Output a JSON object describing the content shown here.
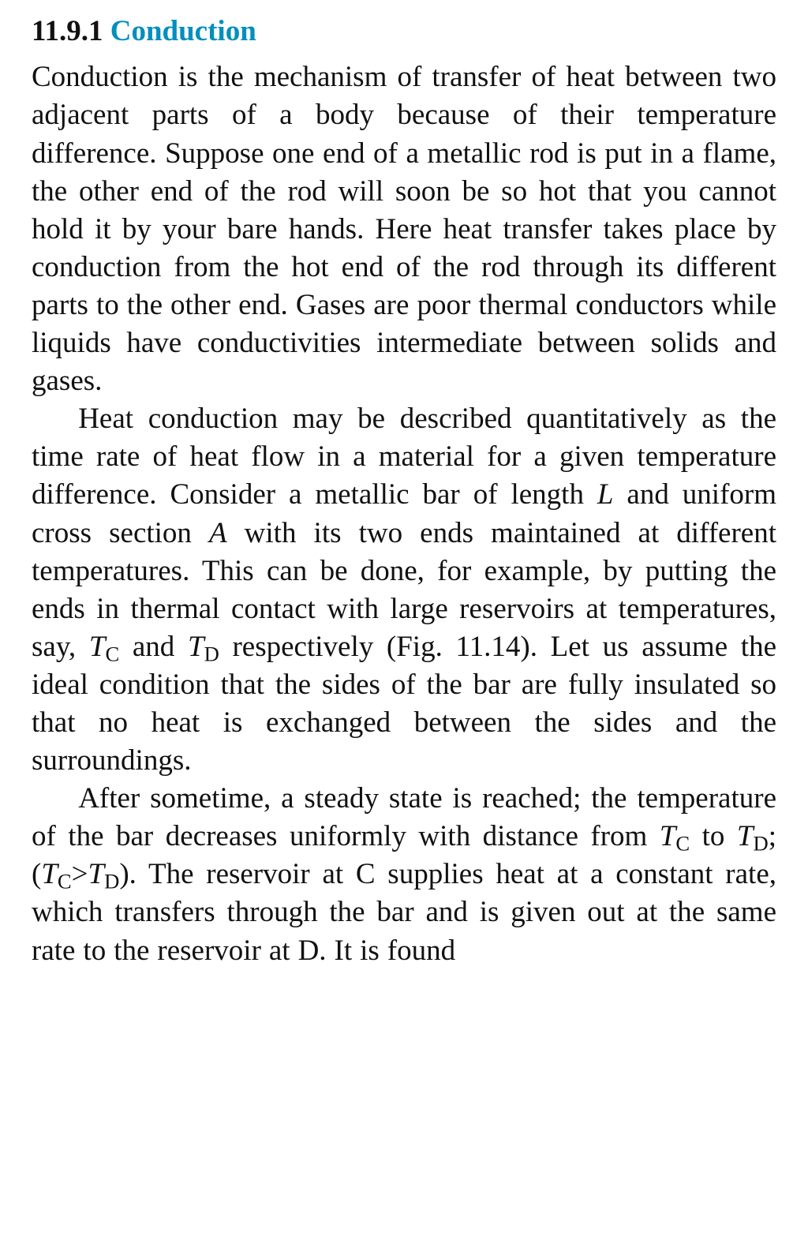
{
  "colors": {
    "heading_number": "#111111",
    "heading_title": "#008fbe",
    "body_text": "#111111",
    "background": "#ffffff"
  },
  "typography": {
    "font_family": "Bookman Old Style / URW Bookman / Georgia (serif)",
    "heading_fontsize_pt": 28,
    "body_fontsize_pt": 28,
    "heading_weight": 700,
    "body_weight": 400,
    "line_height": 1.3,
    "alignment": "justify",
    "paragraph_indent_em": 1.6
  },
  "heading": {
    "number": "11.9.1",
    "title": "Conduction"
  },
  "paragraphs": {
    "p1": "Conduction is the mechanism of transfer of heat between two adjacent parts of a body because of their temperature difference. Suppose one end of a metallic rod is put in a flame, the other end of the rod will soon be so hot that you cannot hold it by your bare hands. Here heat transfer takes place by conduction from the hot end of the rod through its different parts to the other end. Gases are poor thermal conductors while liquids have conductivities intermediate between solids and gases.",
    "p2_a": "Heat conduction may be described quantitatively as the time rate of heat flow in a material for a given temperature difference. Consider a metallic bar of length ",
    "p2_L": "L",
    "p2_b": " and uniform cross section ",
    "p2_A": "A",
    "p2_c": " with its two ends maintained at different temperatures. This can be done, for example, by putting the ends in thermal contact with large reservoirs at temperatures, say, ",
    "p2_TC": "T",
    "p2_TC_sub": "C",
    "p2_d": " and ",
    "p2_TD": "T",
    "p2_TD_sub": "D",
    "p2_e": " respectively (Fig. 11.14). Let us assume the ideal condition that the sides of the bar are fully insulated so that no heat is exchanged between the sides and the surroundings.",
    "p3_a": "After sometime, a steady state is reached; the temperature of the bar decreases uniformly with distance from ",
    "p3_TC": "T",
    "p3_TC_sub": "C",
    "p3_b": " to ",
    "p3_TD": "T",
    "p3_TD_sub": "D",
    "p3_c": "; (",
    "p3_TC2": "T",
    "p3_TC2_sub": "C",
    "p3_gt": ">",
    "p3_TD2": "T",
    "p3_TD2_sub": "D",
    "p3_d": "). The reservoir at C supplies heat at a constant rate, which transfers through the bar and is given out at the same rate to the reservoir at D. It is found"
  }
}
